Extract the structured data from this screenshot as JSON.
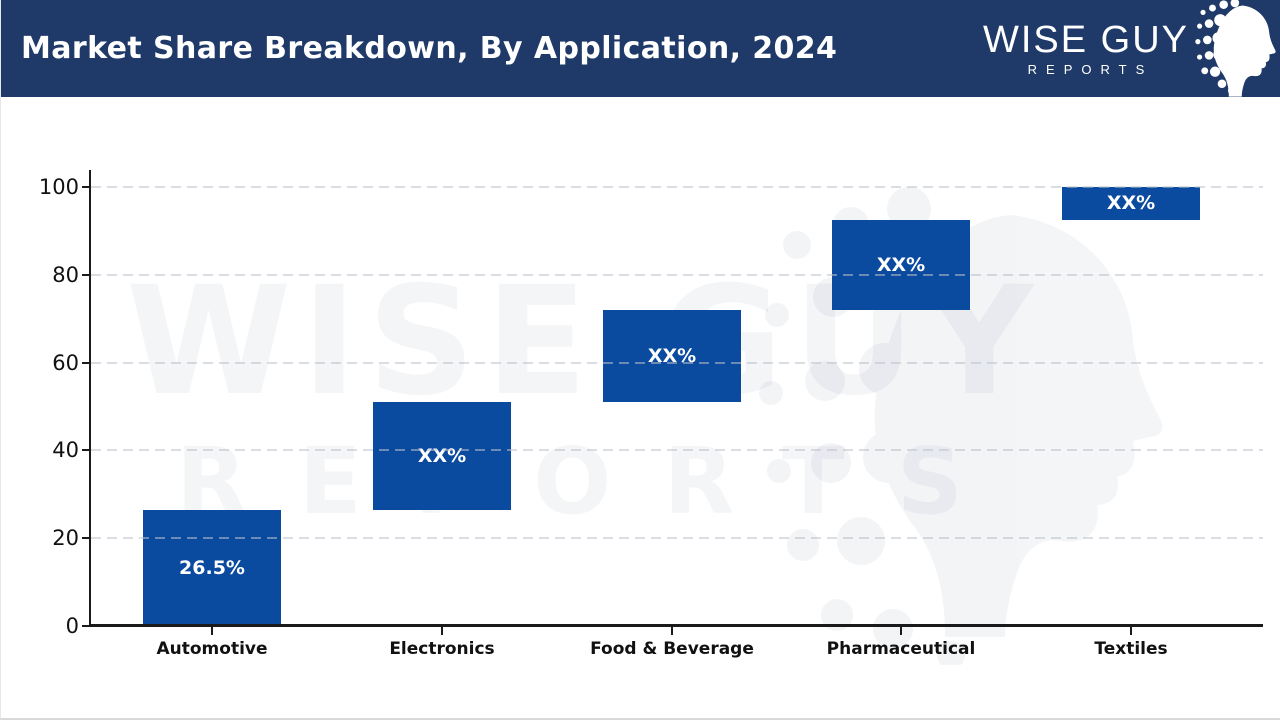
{
  "header": {
    "title": "Market Share Breakdown, By Application, 2024",
    "logo": {
      "line1": "WISE GUY",
      "line2": "REPORTS"
    }
  },
  "watermark": {
    "line1": "WISE GUY",
    "line2": "REPORTS"
  },
  "colors": {
    "header_bg": "#1f3a68",
    "bar_blue": "#0a4a9f",
    "axis_black": "#1a1a1a",
    "grid_gray": "#dcdfe5",
    "label_white": "#ffffff"
  },
  "chart_data": {
    "type": "bar",
    "subtype": "waterfall-floating-bars",
    "title": "Market Share Breakdown, By Application, 2024",
    "xlabel": "",
    "ylabel": "",
    "categories": [
      "Automotive",
      "Electronics",
      "Food & Beverage",
      "Pharmaceutical",
      "Textiles"
    ],
    "segments": [
      {
        "category": "Automotive",
        "start": 0,
        "end": 26.5,
        "label": "26.5%"
      },
      {
        "category": "Electronics",
        "start": 26.5,
        "end": 51,
        "label": "XX%"
      },
      {
        "category": "Food & Beverage",
        "start": 51,
        "end": 72,
        "label": "XX%"
      },
      {
        "category": "Pharmaceutical",
        "start": 72,
        "end": 92.5,
        "label": "XX%"
      },
      {
        "category": "Textiles",
        "start": 92.5,
        "end": 100,
        "label": "XX%"
      }
    ],
    "yticks": [
      0,
      20,
      40,
      60,
      80,
      100
    ],
    "ylim": [
      0,
      104
    ],
    "grid": true,
    "grid_style": "dashed-horizontal",
    "legend": false,
    "bar_color": "#0a4a9f",
    "value_label_color": "#ffffff"
  }
}
